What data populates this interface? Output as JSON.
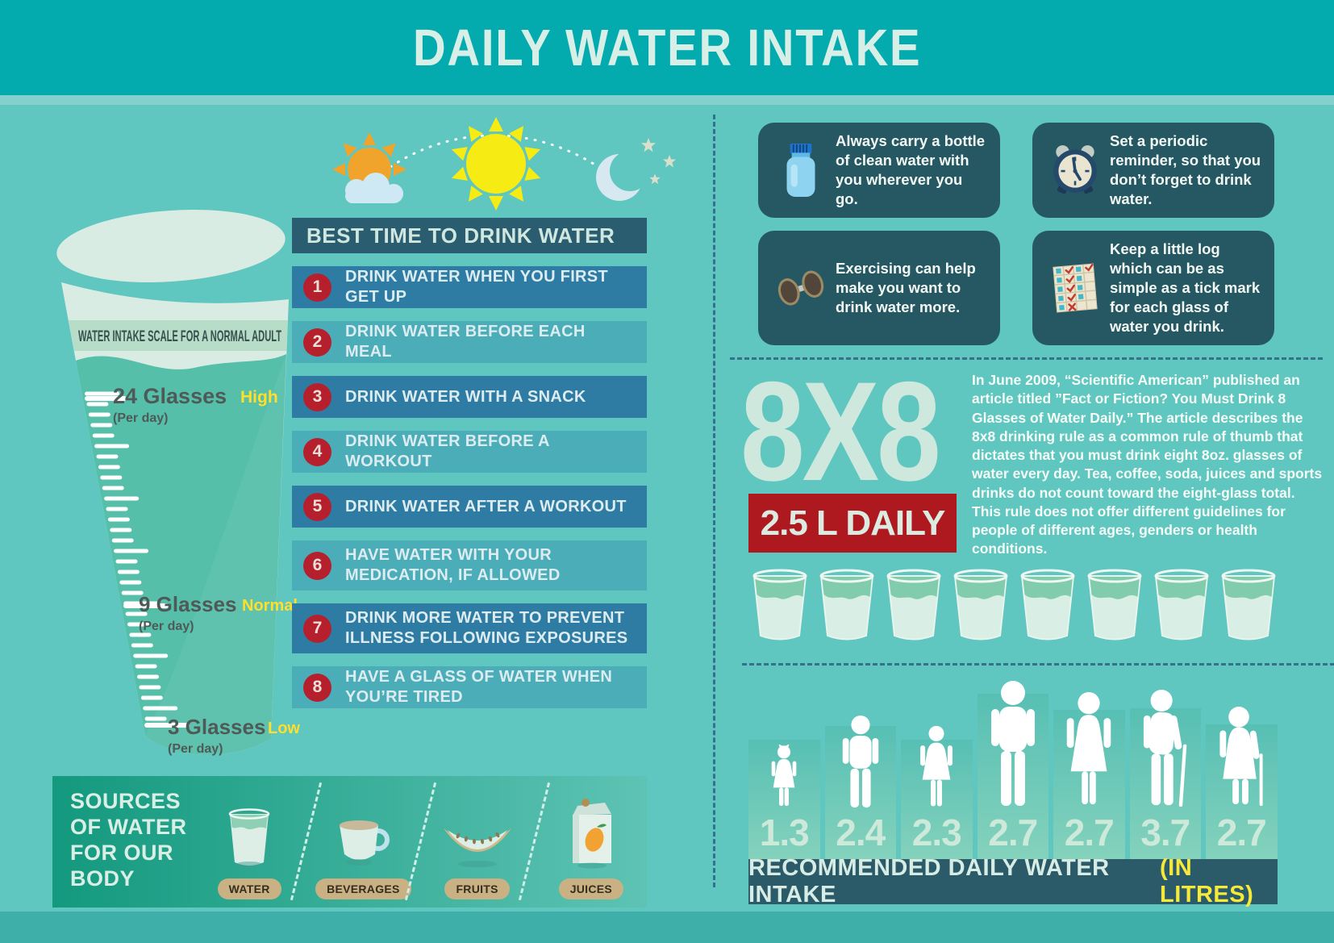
{
  "page": {
    "title": "DAILY WATER INTAKE"
  },
  "scale": {
    "label": "WATER INTAKE SCALE FOR A NORMAL ADULT",
    "levels": [
      {
        "amount": "24 Glasses",
        "per": "(Per day)",
        "level": "High"
      },
      {
        "amount": "9 Glasses",
        "per": "(Per day)",
        "level": "Normal"
      },
      {
        "amount": "3 Glasses",
        "per": "(Per day)",
        "level": "Low"
      }
    ]
  },
  "best_time": {
    "title": "BEST TIME TO DRINK WATER",
    "items": [
      {
        "num": "1",
        "text": "DRINK WATER WHEN YOU FIRST GET UP"
      },
      {
        "num": "2",
        "text": "DRINK WATER BEFORE EACH MEAL"
      },
      {
        "num": "3",
        "text": "DRINK WATER WITH A SNACK"
      },
      {
        "num": "4",
        "text": "DRINK WATER BEFORE A WORKOUT"
      },
      {
        "num": "5",
        "text": "DRINK WATER AFTER A WORKOUT"
      },
      {
        "num": "6",
        "text": "HAVE WATER WITH YOUR MEDICATION, IF ALLOWED"
      },
      {
        "num": "7",
        "text": "DRINK MORE WATER TO PREVENT ILLNESS FOLLOWING EXPOSURES"
      },
      {
        "num": "8",
        "text": "HAVE A GLASS OF WATER WHEN YOU’RE TIRED"
      }
    ]
  },
  "tips": [
    {
      "icon": "water-bottle-icon",
      "text": "Always carry a bottle of clean water with you wherever you go."
    },
    {
      "icon": "alarm-clock-icon",
      "text": "Set a periodic reminder, so that you don’t forget to drink water."
    },
    {
      "icon": "dumbbell-icon",
      "text": "Exercising can help make you want to drink water more."
    },
    {
      "icon": "log-sheet-icon",
      "text": "Keep a little log which can be as simple as a tick mark for each glass of water you drink."
    }
  ],
  "rule8x8": {
    "big_text": "8X8",
    "badge": "2.5 L DAILY",
    "paragraph": "In June 2009, “Scientific American” published an article titled ”Fact or Fiction? You Must Drink 8 Glasses of Water Daily.” The article describes the 8x8 drinking rule as a common rule of thumb that dictates that you must drink eight 8oz. glasses of water every day. Tea, coffee, soda, juices and sports drinks do not count toward the eight-glass total. This rule does not offer different guidelines for people of different ages, genders or health conditions.",
    "glasses_count": 8
  },
  "intake": {
    "caption": "RECOMMENDED DAILY WATER INTAKE",
    "caption_unit": "(IN LITRES)",
    "groups": [
      {
        "figure": "toddler-girl",
        "litres": "1.3"
      },
      {
        "figure": "boy",
        "litres": "2.4"
      },
      {
        "figure": "girl",
        "litres": "2.3"
      },
      {
        "figure": "man",
        "litres": "2.7"
      },
      {
        "figure": "woman",
        "litres": "2.7"
      },
      {
        "figure": "elderly-man",
        "litres": "3.7"
      },
      {
        "figure": "elderly-woman",
        "litres": "2.7"
      }
    ]
  },
  "sources": {
    "title": "SOURCES OF WATER FOR OUR BODY",
    "items": [
      {
        "label": "WATER",
        "icon": "water-glass-icon"
      },
      {
        "label": "BEVERAGES",
        "icon": "beverage-cup-icon"
      },
      {
        "label": "FRUITS",
        "icon": "fruit-slice-icon"
      },
      {
        "label": "JUICES",
        "icon": "juice-carton-icon"
      }
    ]
  },
  "colors": {
    "background": "#5fc6c0",
    "header": "#04abae",
    "dark_panel": "#265864",
    "row_dark": "#2e7ba3",
    "row_light": "#4aadb8",
    "accent_red": "#b5202c",
    "badge_red": "#ae191f",
    "accent_yellow": "#ffdf2b",
    "water_green": "#55bfa9",
    "pale_mint": "#d8ece3"
  }
}
